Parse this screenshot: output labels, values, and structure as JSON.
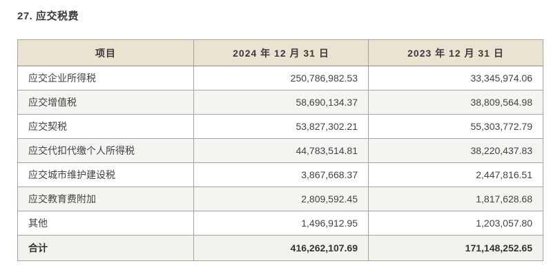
{
  "page": {
    "title": "27. 应交税费"
  },
  "table": {
    "columns": {
      "item": "项目",
      "col2024": "2024 年 12 月 31 日",
      "col2023": "2023 年 12 月 31 日"
    },
    "rows": [
      {
        "item": "应交企业所得税",
        "v2024": "250,786,982.53",
        "v2023": "33,345,974.06"
      },
      {
        "item": "应交增值税",
        "v2024": "58,690,134.37",
        "v2023": "38,809,564.98"
      },
      {
        "item": "应交契税",
        "v2024": "53,827,302.21",
        "v2023": "55,303,772.79"
      },
      {
        "item": "应交代扣代缴个人所得税",
        "v2024": "44,783,514.81",
        "v2023": "38,220,437.83"
      },
      {
        "item": "应交城市维护建设税",
        "v2024": "3,867,668.37",
        "v2023": "2,447,816.51"
      },
      {
        "item": "应交教育费附加",
        "v2024": "2,809,592.45",
        "v2023": "1,817,628.68"
      },
      {
        "item": "其他",
        "v2024": "1,496,912.95",
        "v2023": "1,203,057.80"
      }
    ],
    "total": {
      "item": "合计",
      "v2024": "416,262,107.69",
      "v2023": "171,148,252.65"
    }
  },
  "colors": {
    "header_background": "#eae3d1",
    "alt_row_background": "#f5f4f0",
    "total_row_background": "#f2f1ec",
    "border": "#a3a3a3",
    "text": "#424242"
  }
}
